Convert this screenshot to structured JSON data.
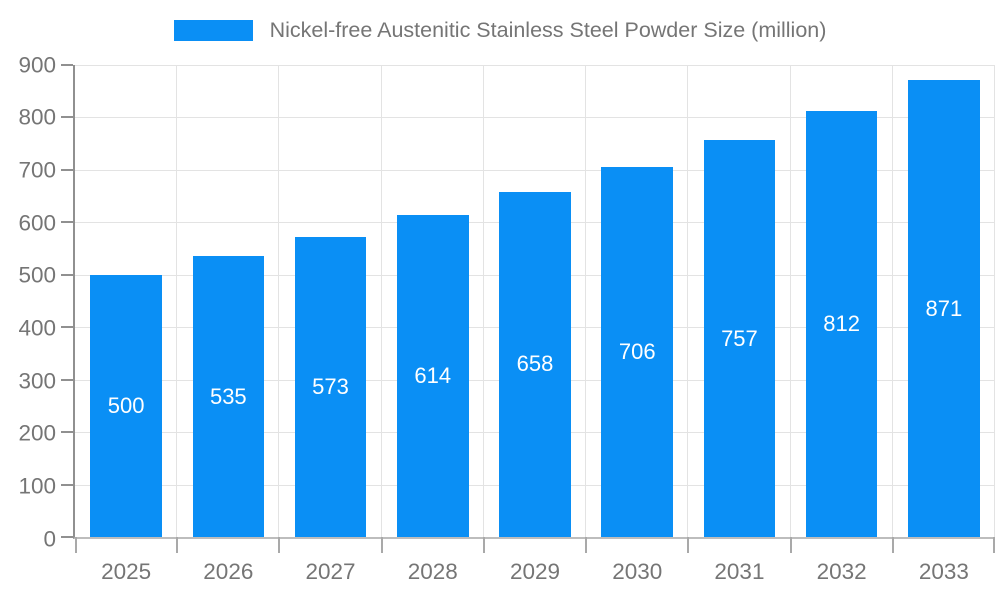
{
  "legend": {
    "series_label": "Nickel-free Austenitic Stainless Steel Powder Size (million)"
  },
  "chart_data": {
    "type": "bar",
    "title": "Nickel-free Austenitic Stainless Steel Powder Size (million)",
    "categories": [
      "2025",
      "2026",
      "2027",
      "2028",
      "2029",
      "2030",
      "2031",
      "2032",
      "2033"
    ],
    "values": [
      500,
      535,
      573,
      614,
      658,
      706,
      757,
      812,
      871
    ],
    "xlabel": "",
    "ylabel": "",
    "ylim": [
      0,
      900
    ],
    "yticks": [
      0,
      100,
      200,
      300,
      400,
      500,
      600,
      700,
      800,
      900
    ],
    "grid": true,
    "legend_position": "top-center",
    "bar_color": "#0a8ff5",
    "bar_label_color": "#ffffff",
    "axis_text_color": "#757575",
    "grid_color": "#e3e3e3",
    "axis_line_color": "#909090"
  }
}
